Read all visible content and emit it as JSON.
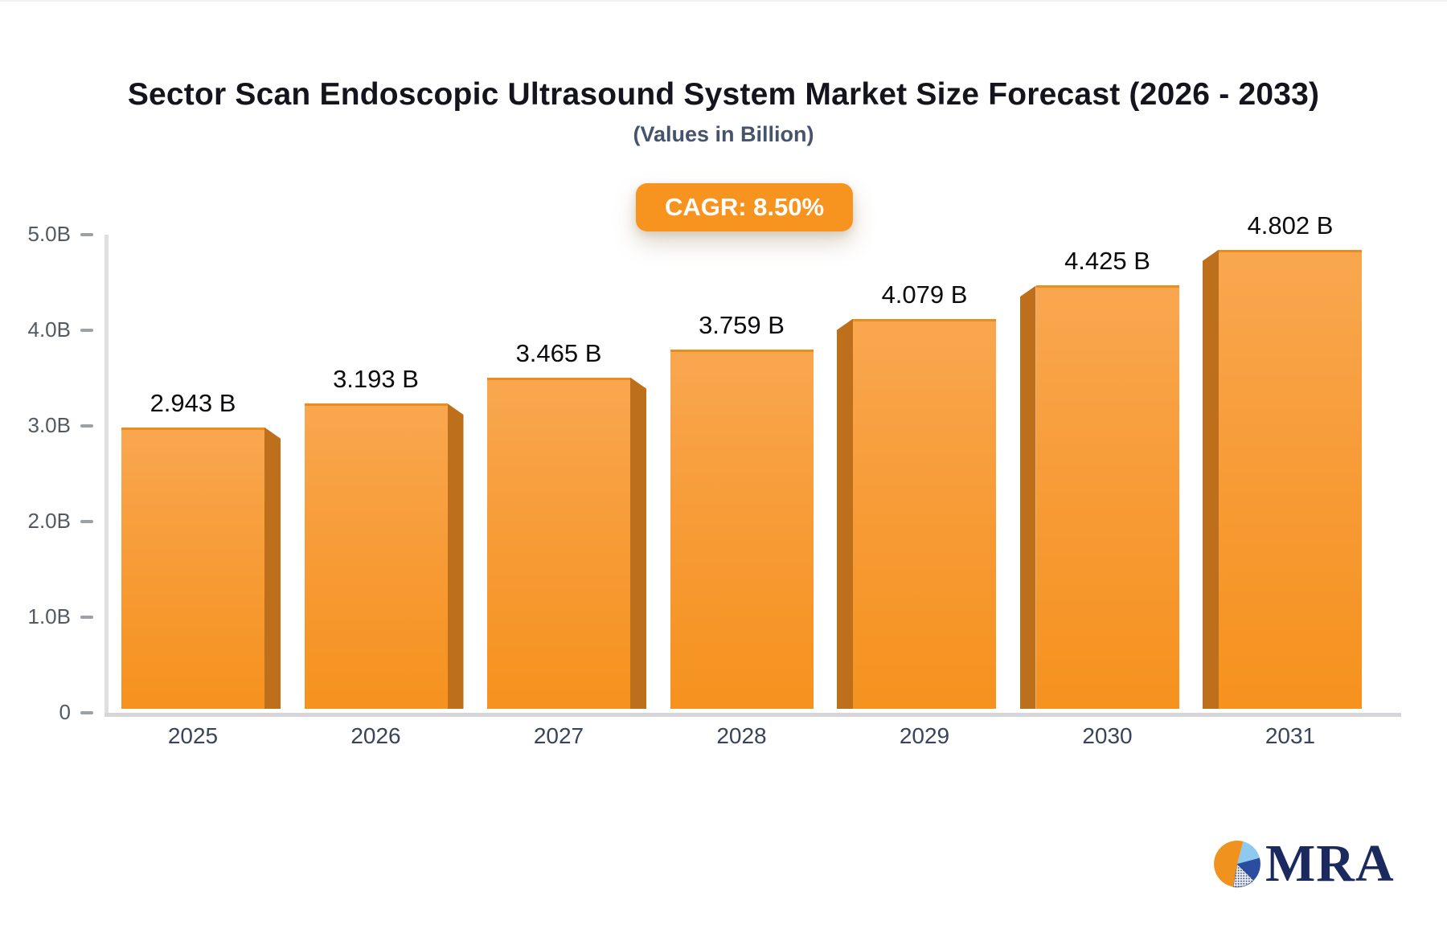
{
  "header": {
    "title": "Sector Scan Endoscopic Ultrasound System Market Size Forecast (2026 - 2033)",
    "subtitle": "(Values in Billion)"
  },
  "badge": {
    "label": "CAGR: 8.50%"
  },
  "chart_data": {
    "type": "bar",
    "title": "Sector Scan Endoscopic Ultrasound System Market Size Forecast (2026 - 2033)",
    "subtitle": "(Values in Billion)",
    "cagr_label": "CAGR: 8.50%",
    "categories": [
      "2025",
      "2026",
      "2027",
      "2028",
      "2029",
      "2030",
      "2031"
    ],
    "values": [
      2.943,
      3.193,
      3.465,
      3.759,
      4.079,
      4.425,
      4.802
    ],
    "value_labels": [
      "2.943 B",
      "3.193 B",
      "3.465 B",
      "3.759 B",
      "4.079 B",
      "4.425 B",
      "4.802 B"
    ],
    "xlabel": "",
    "ylabel": "",
    "ylim": [
      0,
      5
    ],
    "yticks": [
      {
        "label": "5.0B",
        "value": 5.0
      },
      {
        "label": "4.0B",
        "value": 4.0
      },
      {
        "label": "3.0B",
        "value": 3.0
      },
      {
        "label": "2.0B",
        "value": 2.0
      },
      {
        "label": "1.0B",
        "value": 1.0
      },
      {
        "label": "0",
        "value": 0.0
      }
    ],
    "grid": false,
    "legend": false,
    "bar_style": "pseudo-3d",
    "colors": {
      "bar_top": "#f9a74f",
      "bar_bottom": "#f6921e",
      "bar_side": "#bd6f1c",
      "badge_bg": "#f7941f",
      "badge_text": "#ffffff",
      "axis": "#d8d8dc",
      "tick": "#9ca1a8",
      "y_label": "#535962",
      "x_label": "#39445a",
      "value_label": "#0c0c0f",
      "title": "#14141c",
      "subtitle": "#46536b"
    }
  },
  "logo": {
    "text": "MRA",
    "icon": "pie-chart-icon",
    "icon_colors": {
      "orange": "#f0921e",
      "light_blue": "#8ec9ef",
      "navy": "#2a4da0",
      "dotted_base": "#e9eaef",
      "dotted_dot": "#27407e",
      "text_navy": "#1b2a5e"
    }
  }
}
